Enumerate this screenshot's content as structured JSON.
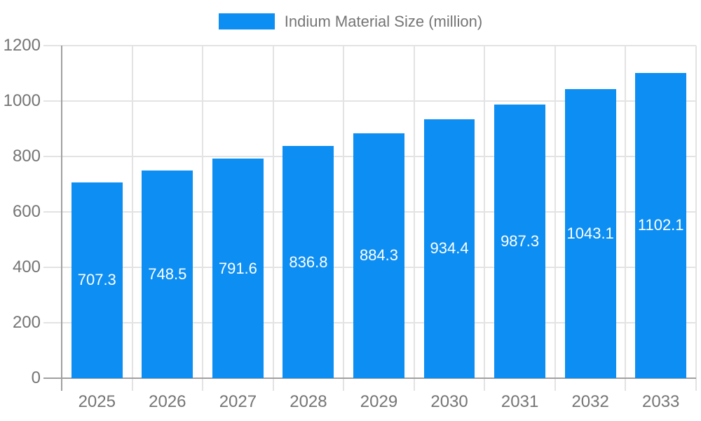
{
  "chart_data": {
    "type": "bar",
    "title": "Indium Material Size (million)",
    "series_label": "Indium Material Size (million)",
    "categories": [
      "2025",
      "2026",
      "2027",
      "2028",
      "2029",
      "2030",
      "2031",
      "2032",
      "2033"
    ],
    "values": [
      707.3,
      748.5,
      791.6,
      836.8,
      884.3,
      934.4,
      987.3,
      1043.1,
      1102.1
    ],
    "value_labels": [
      "707.3",
      "748.5",
      "791.6",
      "836.8",
      "884.3",
      "934.4",
      "987.3",
      "1043.1",
      "1102.1"
    ],
    "xlabel": "",
    "ylabel": "",
    "ylim": [
      0,
      1200
    ],
    "yticks": [
      0,
      200,
      400,
      600,
      800,
      1000,
      1200
    ],
    "grid": true,
    "legend_position": "top-center"
  },
  "colors": {
    "bar": "#0d8ef3",
    "axis_line": "#a0a0a0",
    "gridline": "#e3e3e3",
    "tick_text": "#757575",
    "legend_text": "#757575",
    "value_label_text": "#ffffff",
    "background": "#ffffff"
  }
}
